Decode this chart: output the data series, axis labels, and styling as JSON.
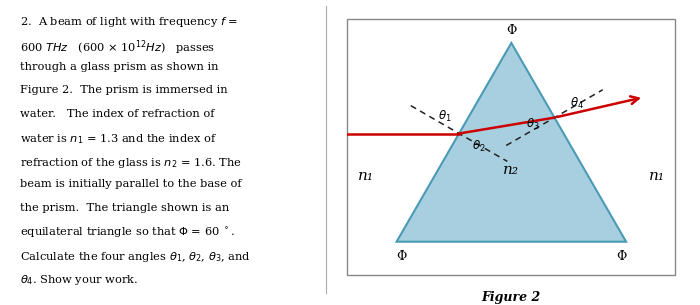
{
  "prism_color": "#a8cfe0",
  "prism_edge_color": "#4a9ab5",
  "beam_color": "#cc0000",
  "normal_color": "#222222",
  "bg_color": "#ffffff",
  "figure_label": "Figure 2",
  "n1_label": "n₁",
  "n2_label": "n₂",
  "phi_label": "Φ",
  "text_lines": [
    "2.  A beam of light with frequency $f$ =",
    "600 $THz$   (600 $\\times$ 10$^{12}$$Hz$)   passes",
    "through a glass prism as shown in",
    "Figure 2.  The prism is immersed in",
    "water.   The index of refraction of",
    "water is $n_1$ = 1.3 and the index of",
    "refraction of the glass is $n_2$ = 1.6. The",
    "beam is initially parallel to the base of",
    "the prism.  The triangle shown is an",
    "equilateral triangle so that $\\Phi$ = 60 $^\\circ$.",
    "Calculate the four angles $\\theta_1$, $\\theta_2$, $\\theta_3$, and",
    "$\\theta_4$. Show your work."
  ],
  "n1": 1.3,
  "n2": 1.6,
  "separator_color": "#aaaaaa",
  "box_color": "#888888"
}
